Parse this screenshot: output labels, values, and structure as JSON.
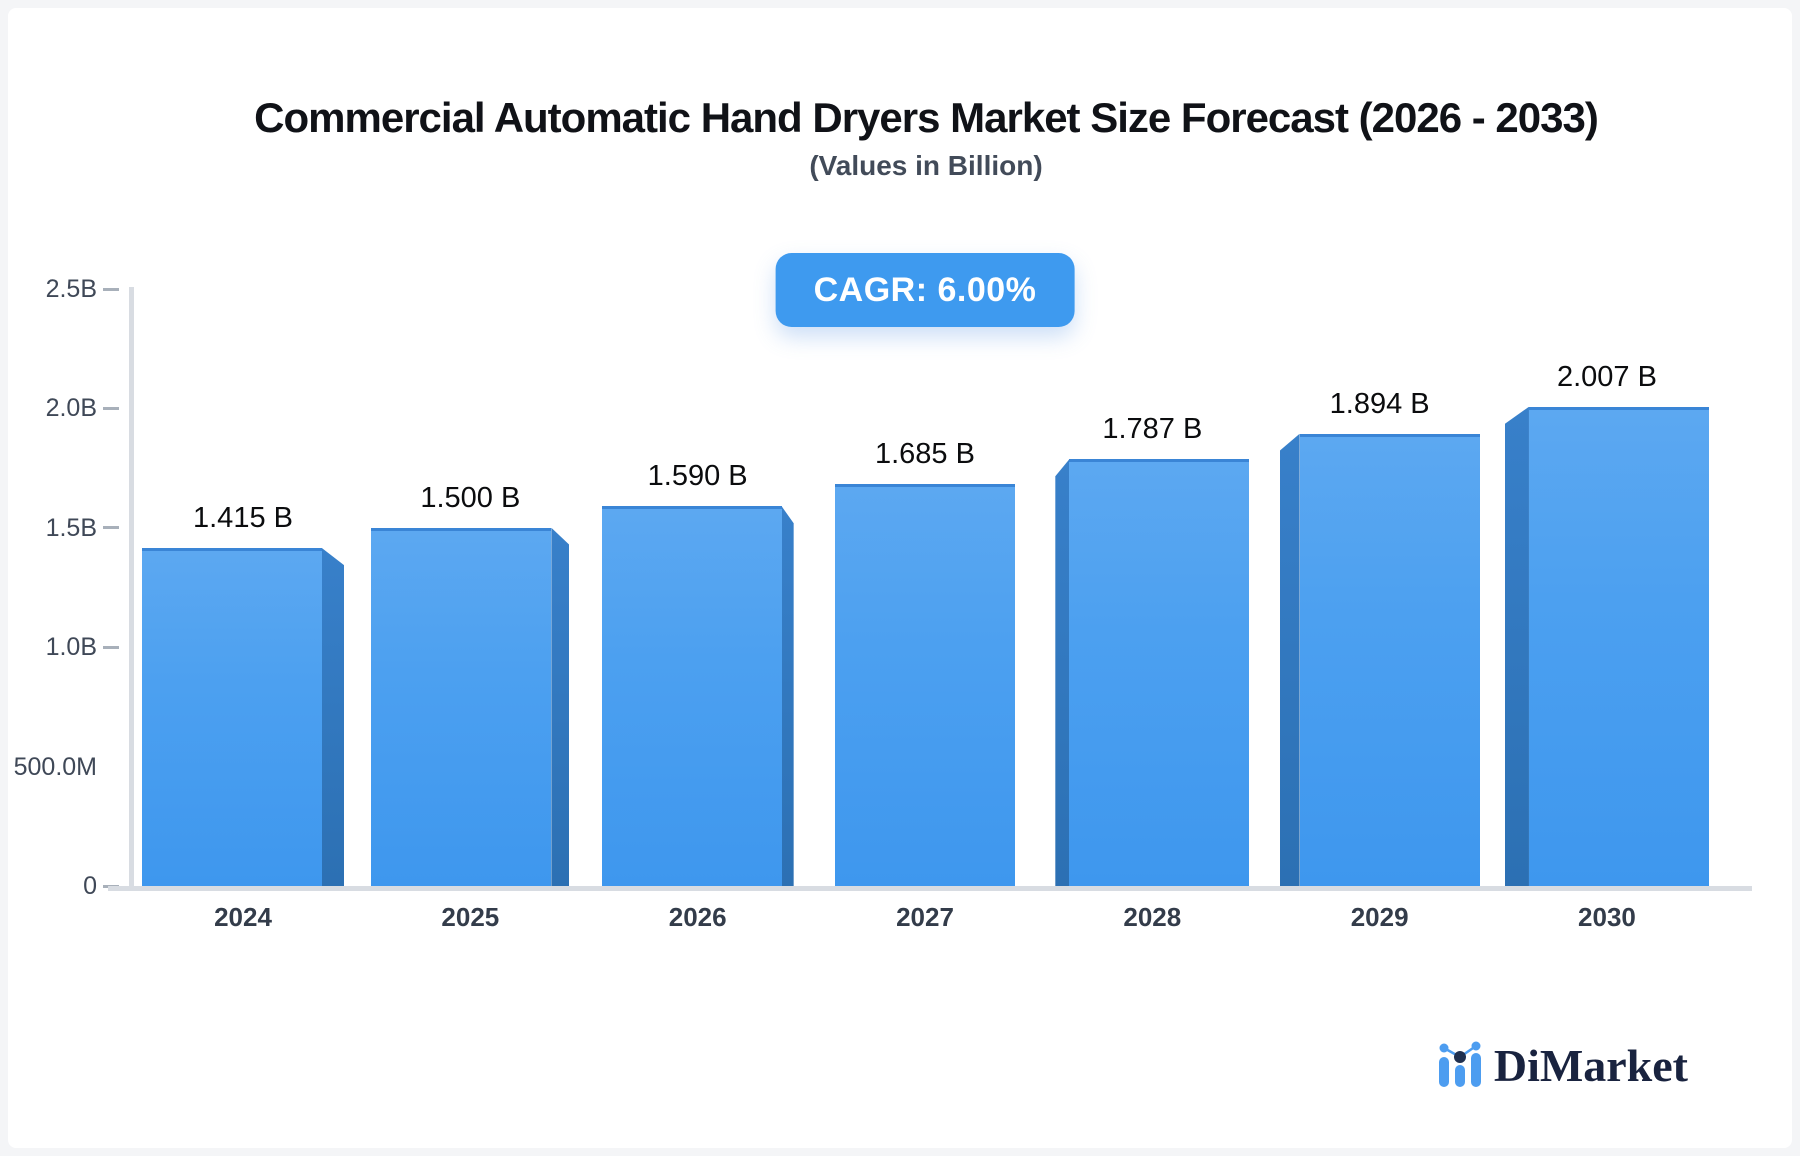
{
  "header": {
    "title": "Commercial Automatic Hand Dryers Market Size Forecast (2026 - 2033)",
    "subtitle": "(Values in Billion)",
    "cagr_label": "CAGR: 6.00%"
  },
  "chart_data": {
    "type": "bar",
    "title": "Commercial Automatic Hand Dryers Market Size Forecast (2026 - 2033)",
    "subtitle": "(Values in Billion)",
    "annotation": "CAGR: 6.00%",
    "categories": [
      "2024",
      "2025",
      "2026",
      "2027",
      "2028",
      "2029",
      "2030"
    ],
    "values": [
      1.415,
      1.5,
      1.59,
      1.685,
      1.787,
      1.894,
      2.007
    ],
    "value_labels": [
      "1.415 B",
      "1.500 B",
      "1.590 B",
      "1.685 B",
      "1.787 B",
      "1.894 B",
      "2.007 B"
    ],
    "unit": "Billion",
    "ylim": [
      0,
      2.5
    ],
    "y_axis": {
      "tick_labels": [
        "2.5B",
        "2.0B",
        "1.5B",
        "1.0B",
        "500.0M",
        "0"
      ],
      "tick_values": [
        2.5,
        2.0,
        1.5,
        1.0,
        0.5,
        0
      ],
      "tick_marks": [
        true,
        true,
        true,
        true,
        false,
        true
      ]
    },
    "grid": false,
    "legend": "none",
    "colors": {
      "bar_top": "#5CA8F1",
      "bar_bottom": "#3E97EE",
      "bar_side": "#2F76BD",
      "badge": "#3E9AEF",
      "axis_line": "#d8dce2"
    }
  },
  "branding": {
    "logo_text": "DiMarket"
  }
}
